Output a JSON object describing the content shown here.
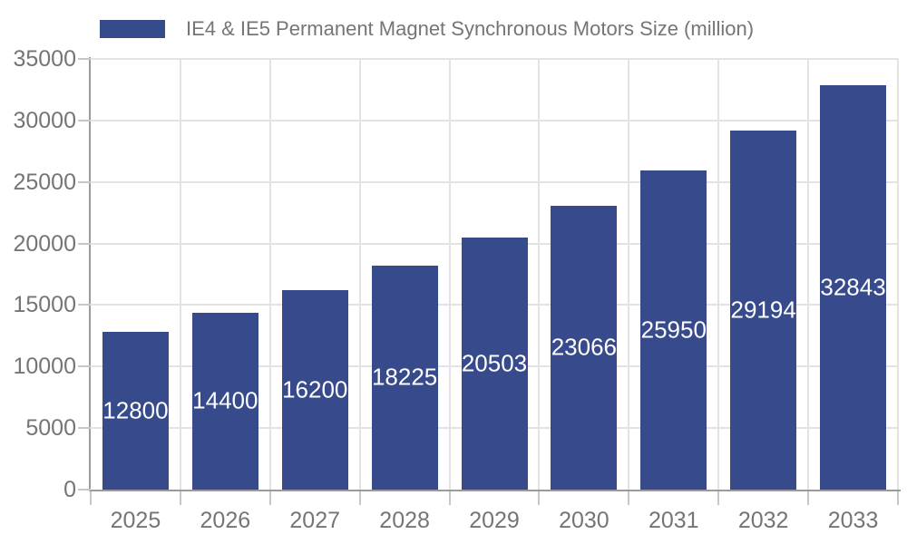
{
  "legend": {
    "label": "IE4 & IE5 Permanent Magnet Synchronous Motors Size (million)"
  },
  "colors": {
    "bar": "#364a8c",
    "grid": "#e3e3e3",
    "axis_line": "#9b9b9b",
    "tick": "#c6c6cc",
    "text": "#757575",
    "value_label": "#ffffff",
    "background": "#ffffff"
  },
  "chart_data": {
    "type": "bar",
    "title": "IE4 & IE5 Permanent Magnet Synchronous Motors Size (million)",
    "categories": [
      "2025",
      "2026",
      "2027",
      "2028",
      "2029",
      "2030",
      "2031",
      "2032",
      "2033"
    ],
    "values": [
      12800,
      14400,
      16200,
      18225,
      20503,
      23066,
      25950,
      29194,
      32843
    ],
    "xlabel": "",
    "ylabel": "",
    "ylim": [
      0,
      35000
    ],
    "yticks": [
      0,
      5000,
      10000,
      15000,
      20000,
      25000,
      30000,
      35000
    ],
    "grid": true,
    "grid_vertical": true,
    "legend_position": "top-left",
    "bar_color": "#364a8c",
    "value_label_position": "inside-center"
  }
}
